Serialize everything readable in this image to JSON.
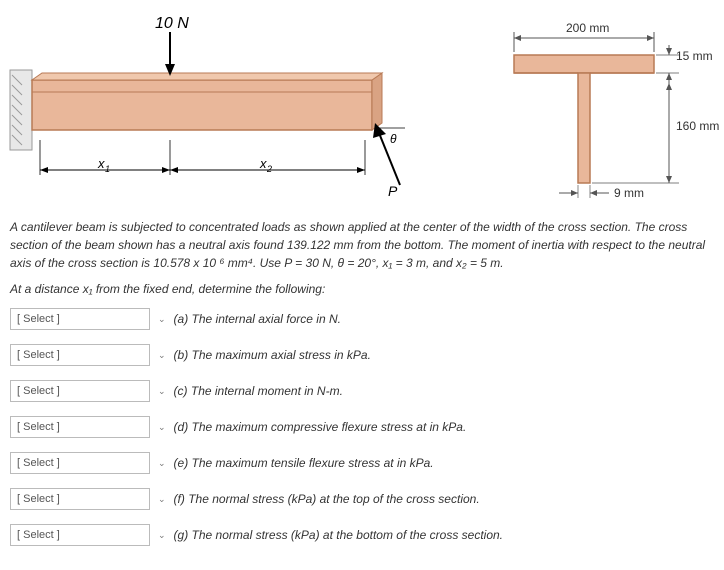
{
  "beam": {
    "load_label": "10 N",
    "x1_label": "x",
    "x1_sub": "1",
    "x2_label": "x",
    "x2_sub": "2",
    "p_label": "P",
    "theta_label": "θ",
    "beam_fill": "#e9b79a",
    "beam_stroke": "#b87a55",
    "wall_fill": "#e8e8e8",
    "hatch_color": "#999",
    "arrow_color": "#000",
    "dim_color": "#000",
    "font_size_load": 16,
    "font_size_dims": 13
  },
  "section": {
    "width_label": "200 mm",
    "flange_t_label": "15 mm",
    "depth_label": "160 mm",
    "web_t_label": "9 mm",
    "fill": "#e9b79a",
    "stroke": "#b87a55",
    "dim_color": "#555",
    "font_size": 12
  },
  "problem": {
    "text": "A cantilever beam is subjected to concentrated loads as shown applied at the center of the width of the cross section. The cross section of the beam shown has a neutral axis found 139.122 mm from the bottom. The moment of inertia with respect to the neutral axis of the cross section is 10.578 x 10 ⁶ mm⁴.  Use P = 30 N, θ = 20°, x₁ = 3 m, and x₂ = 5 m.",
    "prompt": "At a distance x₁ from the fixed end, determine the following:"
  },
  "select_placeholder": "[ Select ]",
  "questions": [
    "(a) The internal axial force in N.",
    "(b) The maximum axial stress in kPa.",
    "(c) The internal moment in N-m.",
    "(d) The maximum compressive flexure stress at in kPa.",
    "(e) The maximum tensile flexure stress at in kPa.",
    "(f) The normal stress (kPa) at the top of the cross section.",
    "(g) The normal stress (kPa) at the bottom of the cross section."
  ]
}
